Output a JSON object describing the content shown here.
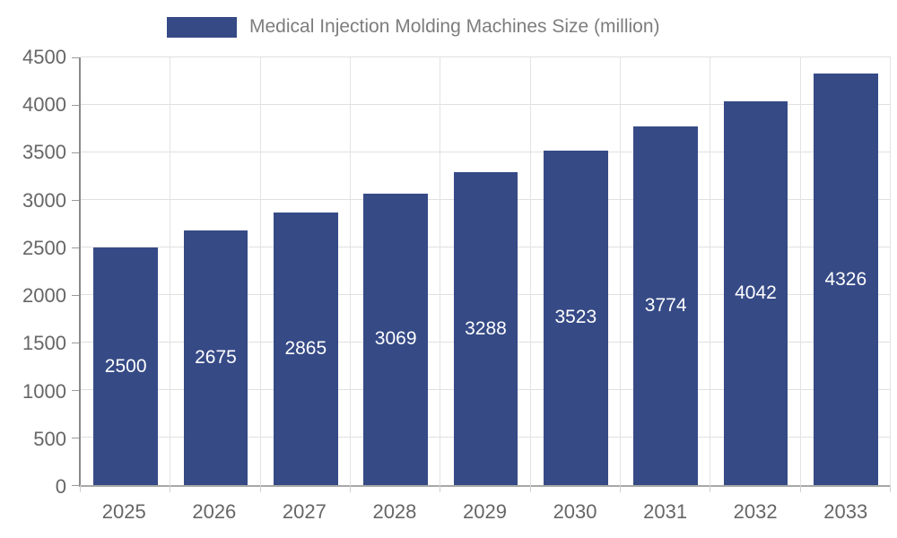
{
  "legend": {
    "label": "Medical Injection Molding Machines Size (million)"
  },
  "chart_data": {
    "type": "bar",
    "title": "Medical Injection Molding Machines Size (million)",
    "series_name": "Medical Injection Molding Machines Size (million)",
    "categories": [
      "2025",
      "2026",
      "2027",
      "2028",
      "2029",
      "2030",
      "2031",
      "2032",
      "2033"
    ],
    "values": [
      2500,
      2675,
      2865,
      3069,
      3288,
      3523,
      3774,
      4042,
      4326
    ],
    "xlabel": "",
    "ylabel": "",
    "ylim": [
      0,
      4500
    ],
    "ytick_step": 500,
    "grid": true,
    "legend_position": "top-center",
    "value_labels": "inside-center",
    "colors": {
      "bar": "#364A86",
      "value_label": "#FFFFFF",
      "gridline": "#E0E0E0",
      "axis": "#9A9A9A",
      "tick_label": "#666666",
      "legend_text": "#7D7D7D",
      "background": "#FFFFFF"
    }
  }
}
